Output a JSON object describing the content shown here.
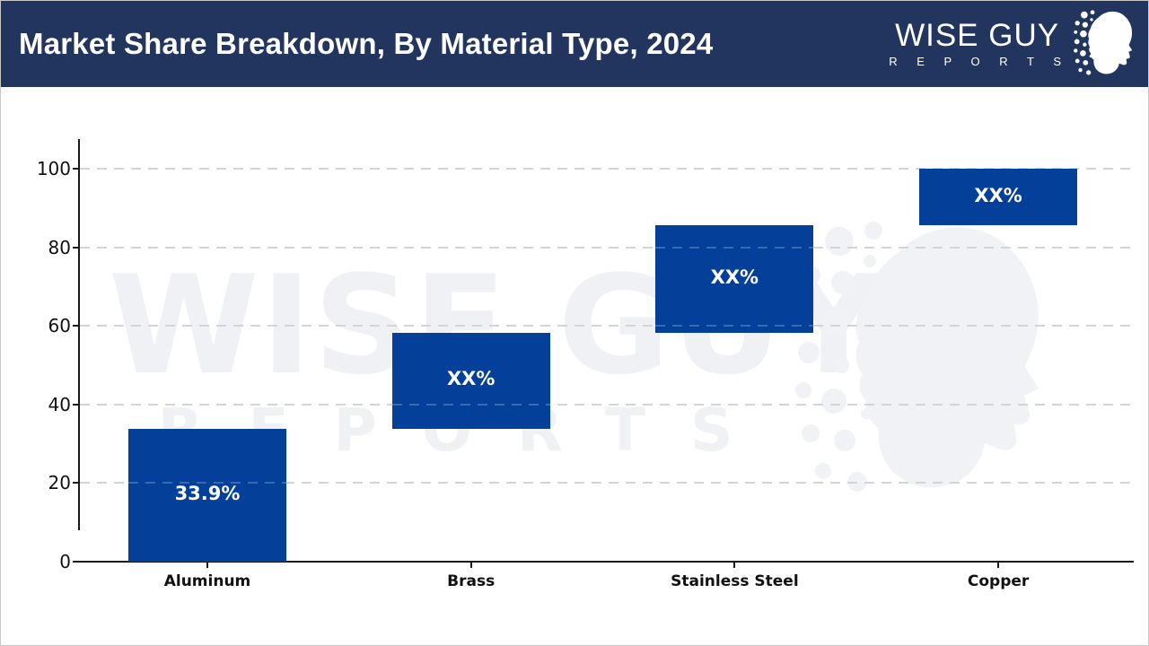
{
  "header": {
    "title": "Market Share Breakdown, By Material Type, 2024",
    "logo": {
      "wordmark": "WISE GUY",
      "subtext": "R E P O R T S",
      "head_icon": "dotted-face-profile"
    },
    "background_color": "#22355f"
  },
  "watermark": {
    "line1": "WISE GUY",
    "line2": "REPORTS",
    "head_icon": "dotted-face-profile",
    "color": "#eff1f4"
  },
  "chart_data": {
    "type": "waterfall",
    "title": "Market Share Breakdown, By Material Type, 2024",
    "categories": [
      "Aluminum",
      "Brass",
      "Stainless Steel",
      "Copper"
    ],
    "series": [
      {
        "name": "Market Share",
        "segments": [
          {
            "category": "Aluminum",
            "start": 0,
            "end": 33.9,
            "label": "33.9%"
          },
          {
            "category": "Brass",
            "start": 33.9,
            "end": 58.2,
            "label": "XX%"
          },
          {
            "category": "Stainless Steel",
            "start": 58.2,
            "end": 85.6,
            "label": "XX%"
          },
          {
            "category": "Copper",
            "start": 85.6,
            "end": 100,
            "label": "XX%"
          }
        ]
      }
    ],
    "xlabel": "",
    "ylabel": "",
    "ylim": [
      0,
      100
    ],
    "yticks": [
      0,
      20,
      40,
      60,
      80,
      100
    ],
    "grid": "horizontal dashed",
    "legend": "none",
    "bar_color": "#043f99",
    "value_label_color": "#ffffff"
  }
}
